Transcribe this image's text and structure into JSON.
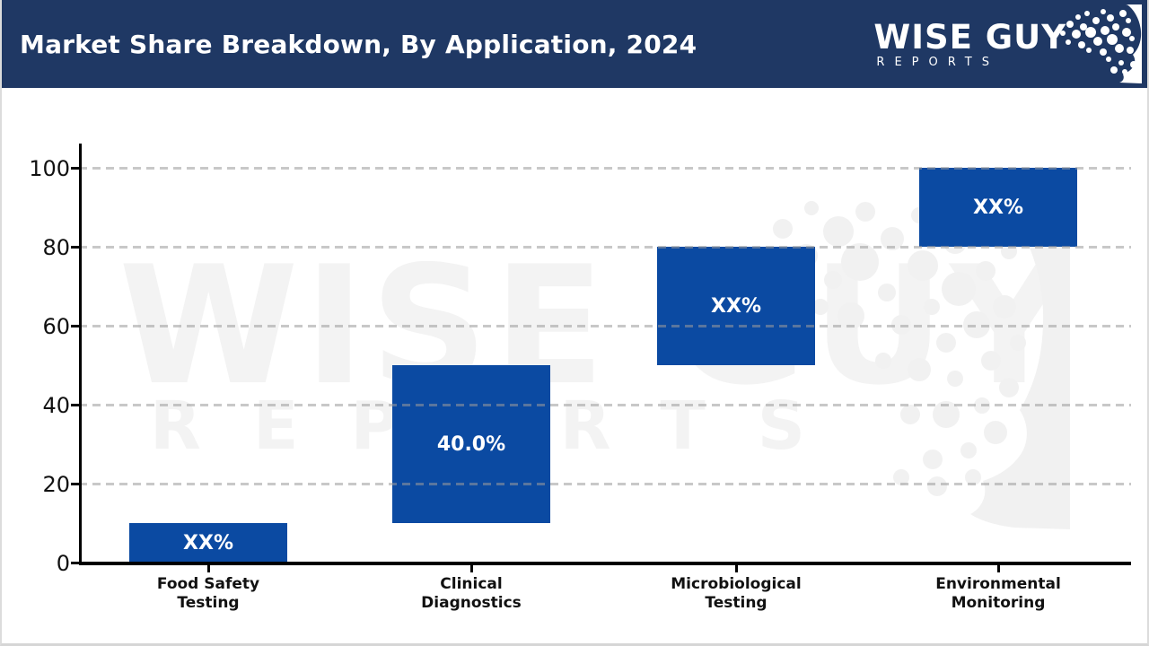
{
  "header": {
    "title": "Market Share Breakdown, By Application, 2024",
    "logo": {
      "wordmark": "WISE GUY",
      "subtext": "REPORTS"
    }
  },
  "watermark": {
    "wordmark": "WISE GUY",
    "subtext": "REPORTS"
  },
  "chart_data": {
    "type": "bar",
    "subtype": "waterfall-floating-bars",
    "title": "Market Share Breakdown, By Application, 2024",
    "categories": [
      "Food Safety\nTesting",
      "Clinical\nDiagnostics",
      "Microbiological\nTesting",
      "Environmental\nMonitoring"
    ],
    "bars": [
      {
        "category": "Food Safety Testing",
        "start": 0,
        "end": 10,
        "value": 10,
        "label": "XX%"
      },
      {
        "category": "Clinical Diagnostics",
        "start": 10,
        "end": 50,
        "value": 40,
        "label": "40.0%"
      },
      {
        "category": "Microbiological Testing",
        "start": 50,
        "end": 80,
        "value": 30,
        "label": "XX%"
      },
      {
        "category": "Environmental Monitoring",
        "start": 80,
        "end": 100,
        "value": 20,
        "label": "XX%"
      }
    ],
    "yticks": [
      0,
      20,
      40,
      60,
      80,
      100
    ],
    "ylim": [
      0,
      105
    ],
    "xlabel": "",
    "ylabel": "",
    "legend": null,
    "grid": "horizontal dashed gridlines drawn above bars",
    "bar_color": "#0b4aa2"
  },
  "colors": {
    "header_bg": "#1f3864",
    "bar": "#0b4aa2",
    "axis": "#000000",
    "grid": "#c9c9c9",
    "watermark": "#f3f3f3",
    "title_text": "#ffffff"
  }
}
